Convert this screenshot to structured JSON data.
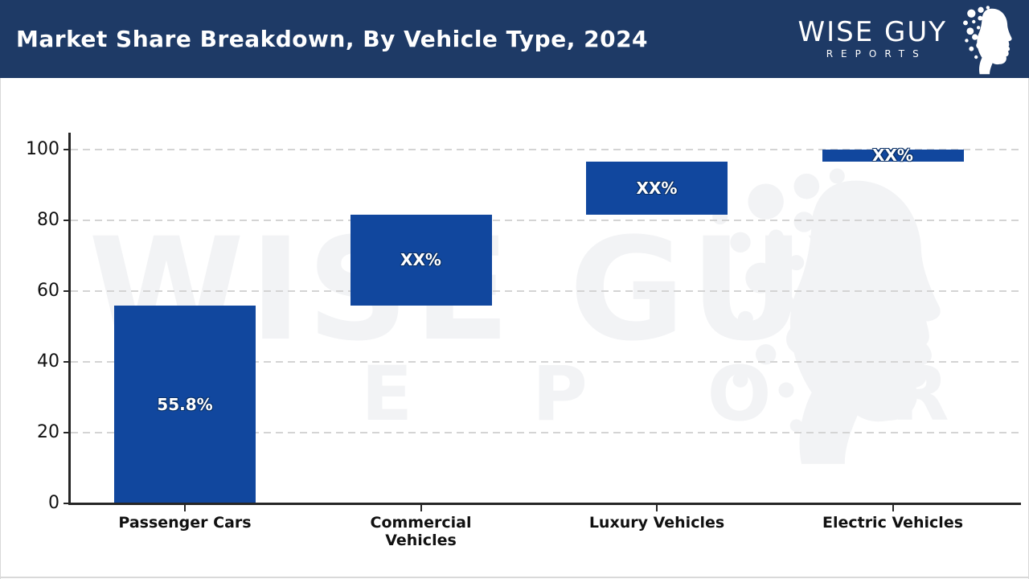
{
  "header": {
    "title": "Market Share Breakdown, By Vehicle Type, 2024",
    "bg_color": "#1e3a66",
    "logo": {
      "line1": "WISE GUY",
      "line2": "REPORTS"
    }
  },
  "watermark": {
    "line1": "WISE GUY",
    "line2": "REPORTS"
  },
  "chart_data": {
    "type": "bar",
    "subtype": "waterfall",
    "title": "Market Share Breakdown, By Vehicle Type, 2024",
    "categories": [
      {
        "label": "Passenger Cars",
        "lines": [
          "Passenger Cars"
        ]
      },
      {
        "label": "Commercial Vehicles",
        "lines": [
          "Commercial",
          "Vehicles"
        ]
      },
      {
        "label": "Luxury Vehicles",
        "lines": [
          "Luxury Vehicles"
        ]
      },
      {
        "label": "Electric Vehicles",
        "lines": [
          "Electric Vehicles"
        ]
      }
    ],
    "segments": [
      {
        "category": "Passenger Cars",
        "start": 0,
        "end": 55.8,
        "label": "55.8%"
      },
      {
        "category": "Commercial Vehicles",
        "start": 55.8,
        "end": 81.7,
        "label": "XX%"
      },
      {
        "category": "Luxury Vehicles",
        "start": 81.7,
        "end": 96.6,
        "label": "XX%"
      },
      {
        "category": "Electric Vehicles",
        "start": 96.6,
        "end": 100,
        "label": "XX%"
      }
    ],
    "yticks": [
      0,
      20,
      40,
      60,
      80,
      100
    ],
    "ylim": [
      0,
      100
    ],
    "xlabel": "",
    "ylabel": "",
    "grid": "horizontal-dashed",
    "legend": "none",
    "bar_color": "#11479e",
    "bar_label_color": "#ffffff",
    "axis_color": "#262626",
    "grid_color": "#d4d4d4"
  }
}
